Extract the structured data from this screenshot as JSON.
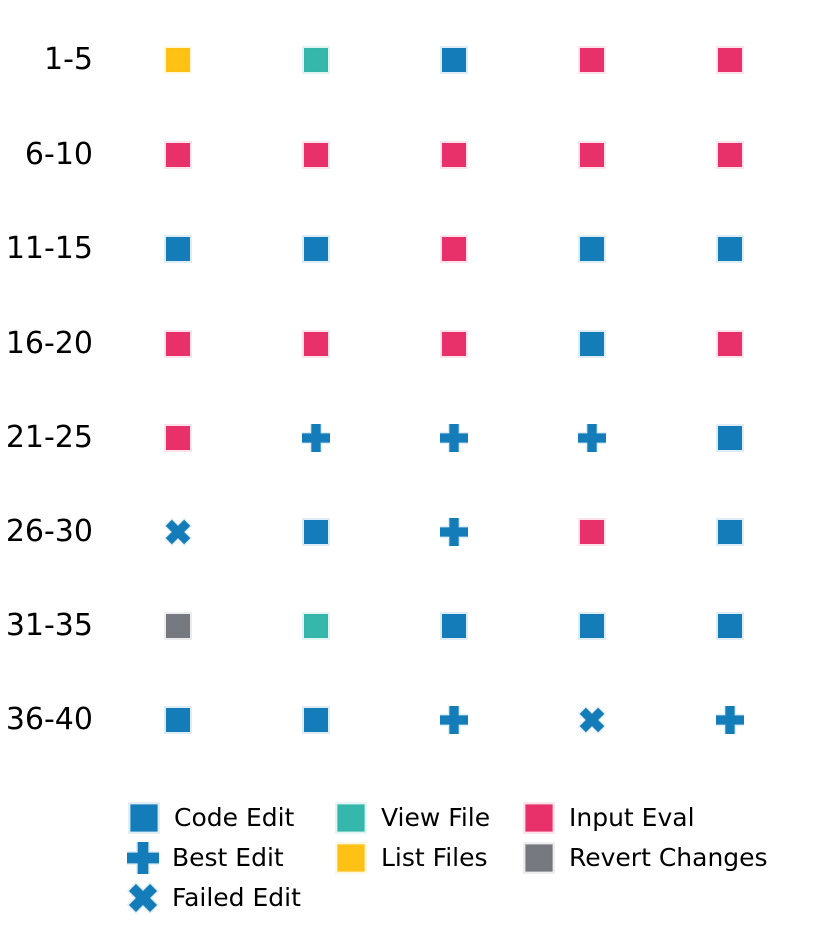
{
  "figure": {
    "background_color": "#ffffff"
  },
  "chart_data": {
    "type": "scatter",
    "title": "",
    "xlabel": "",
    "ylabel": "",
    "grid_on": false,
    "description": "Categorical marker grid: 8 turn-range rows x 5 action slots, marker style/color encodes action type",
    "row_labels": [
      "1-5",
      "6-10",
      "11-15",
      "16-20",
      "21-25",
      "26-30",
      "31-35",
      "36-40"
    ],
    "columns_per_row": 5,
    "cells": [
      [
        "List Files",
        "View File",
        "Code Edit",
        "Input Eval",
        "Input Eval"
      ],
      [
        "Input Eval",
        "Input Eval",
        "Input Eval",
        "Input Eval",
        "Input Eval"
      ],
      [
        "Code Edit",
        "Code Edit",
        "Input Eval",
        "Code Edit",
        "Code Edit"
      ],
      [
        "Input Eval",
        "Input Eval",
        "Input Eval",
        "Code Edit",
        "Input Eval"
      ],
      [
        "Input Eval",
        "Best Edit",
        "Best Edit",
        "Best Edit",
        "Code Edit"
      ],
      [
        "Failed Edit",
        "Code Edit",
        "Best Edit",
        "Input Eval",
        "Code Edit"
      ],
      [
        "Revert Changes",
        "View File",
        "Code Edit",
        "Code Edit",
        "Code Edit"
      ],
      [
        "Code Edit",
        "Code Edit",
        "Best Edit",
        "Failed Edit",
        "Best Edit"
      ]
    ],
    "legend": {
      "position": "bottom",
      "columns": 3,
      "entries": [
        {
          "label": "Code Edit",
          "marker": "square",
          "color": "#147CB8"
        },
        {
          "label": "View File",
          "marker": "square",
          "color": "#35B7AB"
        },
        {
          "label": "Input Eval",
          "marker": "square",
          "color": "#E8316B"
        },
        {
          "label": "Best Edit",
          "marker": "plus",
          "color": "#147CB8"
        },
        {
          "label": "List Files",
          "marker": "square",
          "color": "#FEC114"
        },
        {
          "label": "Revert Changes",
          "marker": "square",
          "color": "#76797F"
        },
        {
          "label": "Failed Edit",
          "marker": "cross",
          "color": "#147CB8"
        }
      ]
    }
  }
}
